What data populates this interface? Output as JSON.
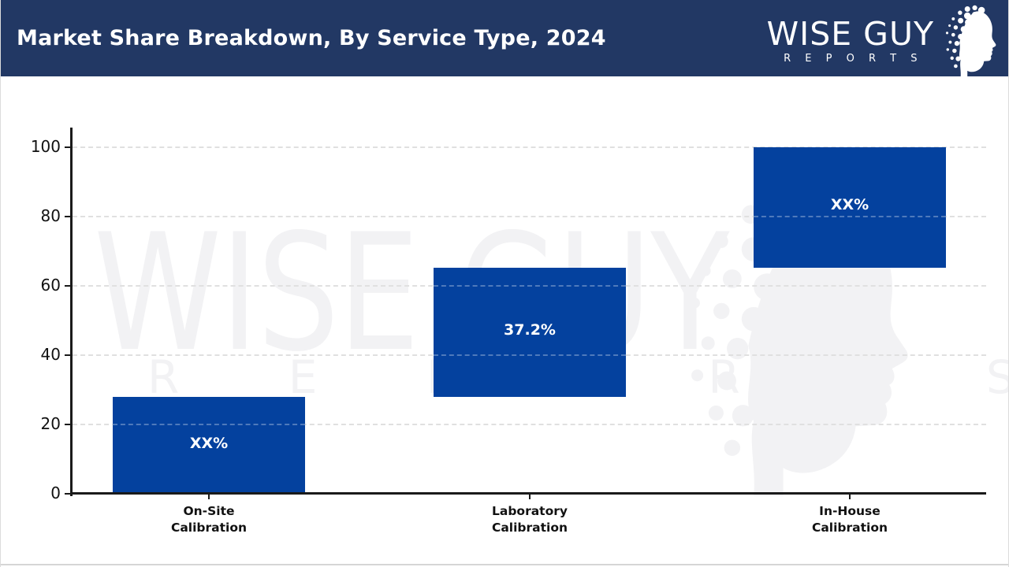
{
  "header": {
    "title": "Market Share Breakdown, By Service Type, 2024",
    "logo": {
      "name": "WISE GUY",
      "tagline": "R E P O R T S"
    }
  },
  "watermark": {
    "name": "WISE GUY",
    "tagline": "R E P O R T S"
  },
  "colors": {
    "header_bg": "#223864",
    "bar": "#04419e",
    "gridline": "#e0e0e0",
    "axis": "#1a1a1a",
    "watermark": "#f2f2f4",
    "bar_label_text": "#ffffff"
  },
  "chart_data": {
    "type": "bar",
    "variant": "floating_segment_bars_waterfall_style",
    "title": "Market Share Breakdown, By Service Type, 2024",
    "categories": [
      [
        "On-Site",
        "Calibration"
      ],
      [
        "Laboratory",
        "Calibration"
      ],
      [
        "In-House",
        "Calibration"
      ]
    ],
    "segments": [
      {
        "category": "On-Site Calibration",
        "start": 0,
        "end": 27.9,
        "height": 27.9,
        "label": "XX%"
      },
      {
        "category": "Laboratory Calibration",
        "start": 27.9,
        "end": 65.1,
        "height": 37.2,
        "label": "37.2%"
      },
      {
        "category": "In-House Calibration",
        "start": 65.1,
        "end": 100,
        "height": 34.9,
        "label": "XX%"
      }
    ],
    "yticks": [
      0,
      20,
      40,
      60,
      80,
      100
    ],
    "ylim": [
      0,
      105
    ],
    "xlabel": "",
    "ylabel": "",
    "grid": "horizontal dashed",
    "legend": "none"
  }
}
